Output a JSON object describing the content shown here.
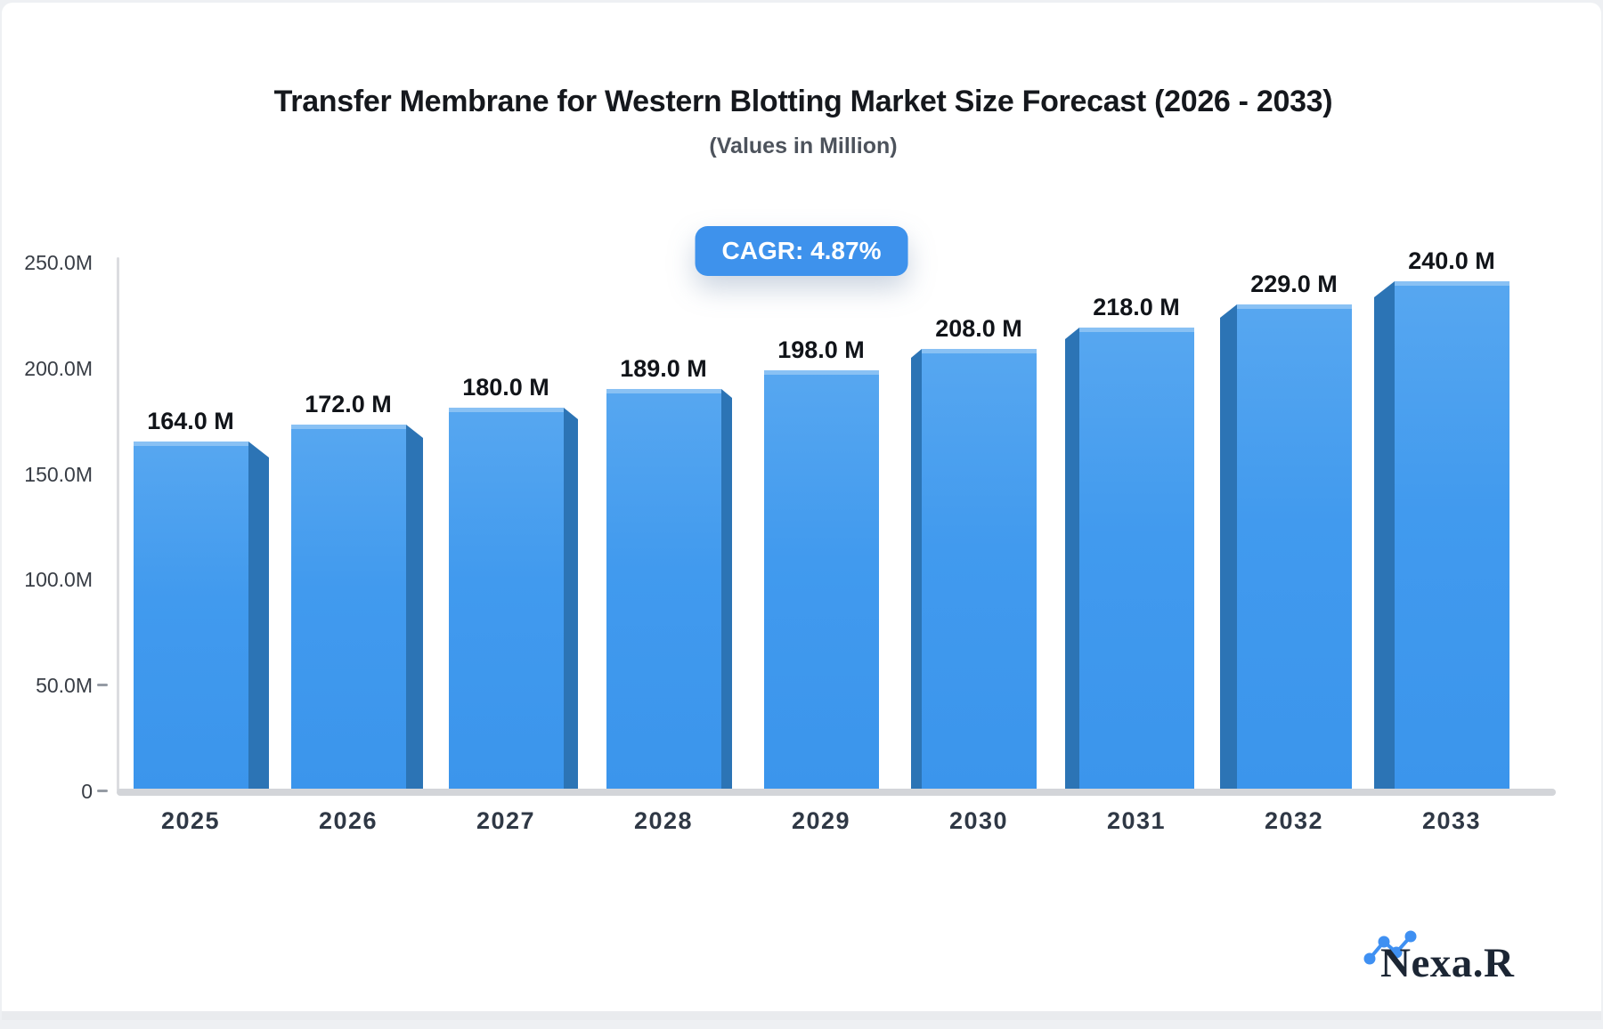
{
  "page": {
    "background": "#eef0f3",
    "card_background": "#ffffff"
  },
  "header": {
    "title": "Transfer Membrane for Western Blotting Market Size Forecast (2026 - 2033)",
    "subtitle": "(Values in Million)",
    "cagr_badge": "CAGR: 4.87%"
  },
  "chart_data": {
    "type": "bar",
    "title": "Transfer Membrane for Western Blotting Market Size Forecast (2026 - 2033)",
    "subtitle": "(Values in Million)",
    "unit": "Million",
    "cagr_percent": 4.87,
    "categories": [
      "2025",
      "2026",
      "2027",
      "2028",
      "2029",
      "2030",
      "2031",
      "2032",
      "2033"
    ],
    "values": [
      164,
      172,
      180,
      189,
      198,
      208,
      218,
      229,
      240
    ],
    "bar_labels": [
      "164.0 M",
      "172.0 M",
      "180.0 M",
      "189.0 M",
      "198.0 M",
      "208.0 M",
      "218.0 M",
      "229.0 M",
      "240.0 M"
    ],
    "y_ticks": [
      {
        "label": "250.0M",
        "value": 250,
        "dash": false
      },
      {
        "label": "200.0M",
        "value": 200,
        "dash": false
      },
      {
        "label": "150.0M",
        "value": 150,
        "dash": false
      },
      {
        "label": "100.0M",
        "value": 100,
        "dash": false
      },
      {
        "label": "50.0M",
        "value": 50,
        "dash": true
      },
      {
        "label": "0",
        "value": 0,
        "dash": true
      }
    ],
    "ylim": [
      0,
      250
    ],
    "grid": false,
    "legend": false,
    "bar_color": "#3f98ed",
    "bar_side_color": "#2c74b5",
    "perspective": "center-vanishing-3d"
  },
  "branding": {
    "logo_text": "Nexa.R",
    "logo_icon": "trend-line-chart-icon",
    "logo_icon_color": "#3f90f2",
    "logo_text_color": "#1c2634"
  }
}
